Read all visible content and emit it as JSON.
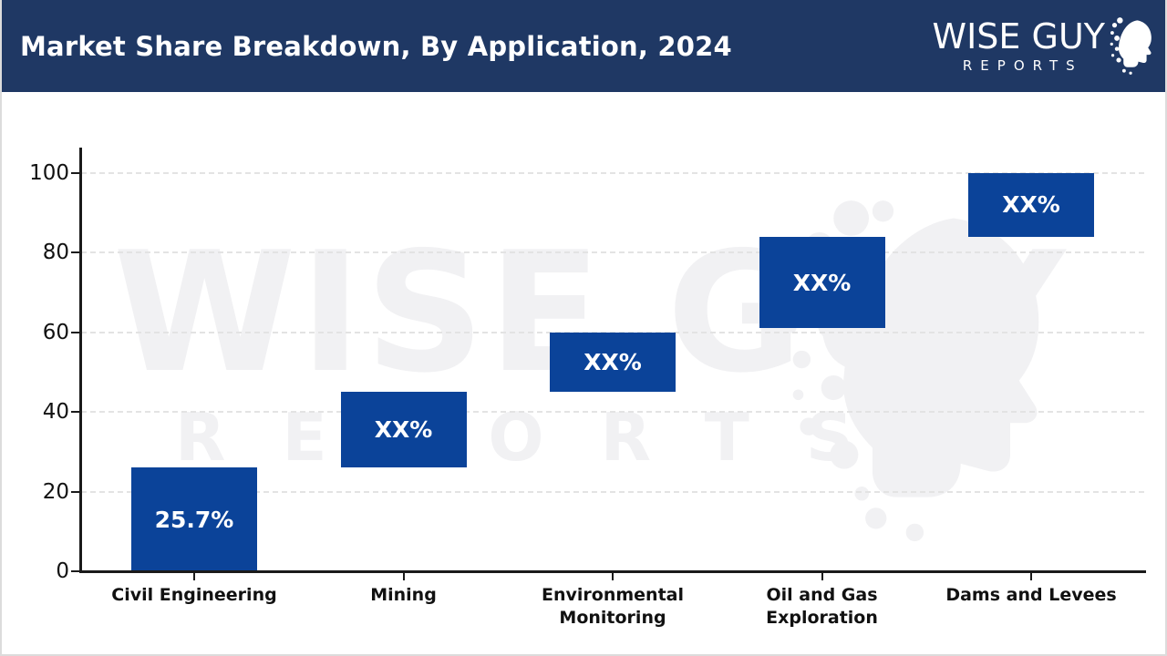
{
  "header": {
    "title": "Market Share Breakdown, By Application, 2024",
    "logo_line1": "WISE GUY",
    "logo_line2": "REPORTS"
  },
  "watermark": {
    "line1": "WISE GUY",
    "line2": "REPORTS"
  },
  "chart_data": {
    "type": "bar",
    "subtype": "waterfall",
    "title": "Market Share Breakdown, By Application, 2024",
    "categories": [
      "Civil Engineering",
      "Mining",
      "Environmental Monitoring",
      "Oil and Gas Exploration",
      "Dams and Levees"
    ],
    "segments": [
      {
        "category": "Civil Engineering",
        "start": 0,
        "end": 26,
        "label": "25.7%"
      },
      {
        "category": "Mining",
        "start": 26,
        "end": 45,
        "label": "XX%"
      },
      {
        "category": "Environmental Monitoring",
        "start": 45,
        "end": 60,
        "label": "XX%"
      },
      {
        "category": "Oil and Gas Exploration",
        "start": 61,
        "end": 84,
        "label": "XX%"
      },
      {
        "category": "Dams and Levees",
        "start": 84,
        "end": 100,
        "label": "XX%"
      }
    ],
    "yticks": [
      0,
      20,
      40,
      60,
      80,
      100
    ],
    "ylim": [
      0,
      106
    ],
    "xlabel": "",
    "ylabel": "",
    "legend": "none",
    "grid": "horizontal-dashed",
    "bar_color": "#0b4399",
    "header_color": "#1f3864"
  }
}
